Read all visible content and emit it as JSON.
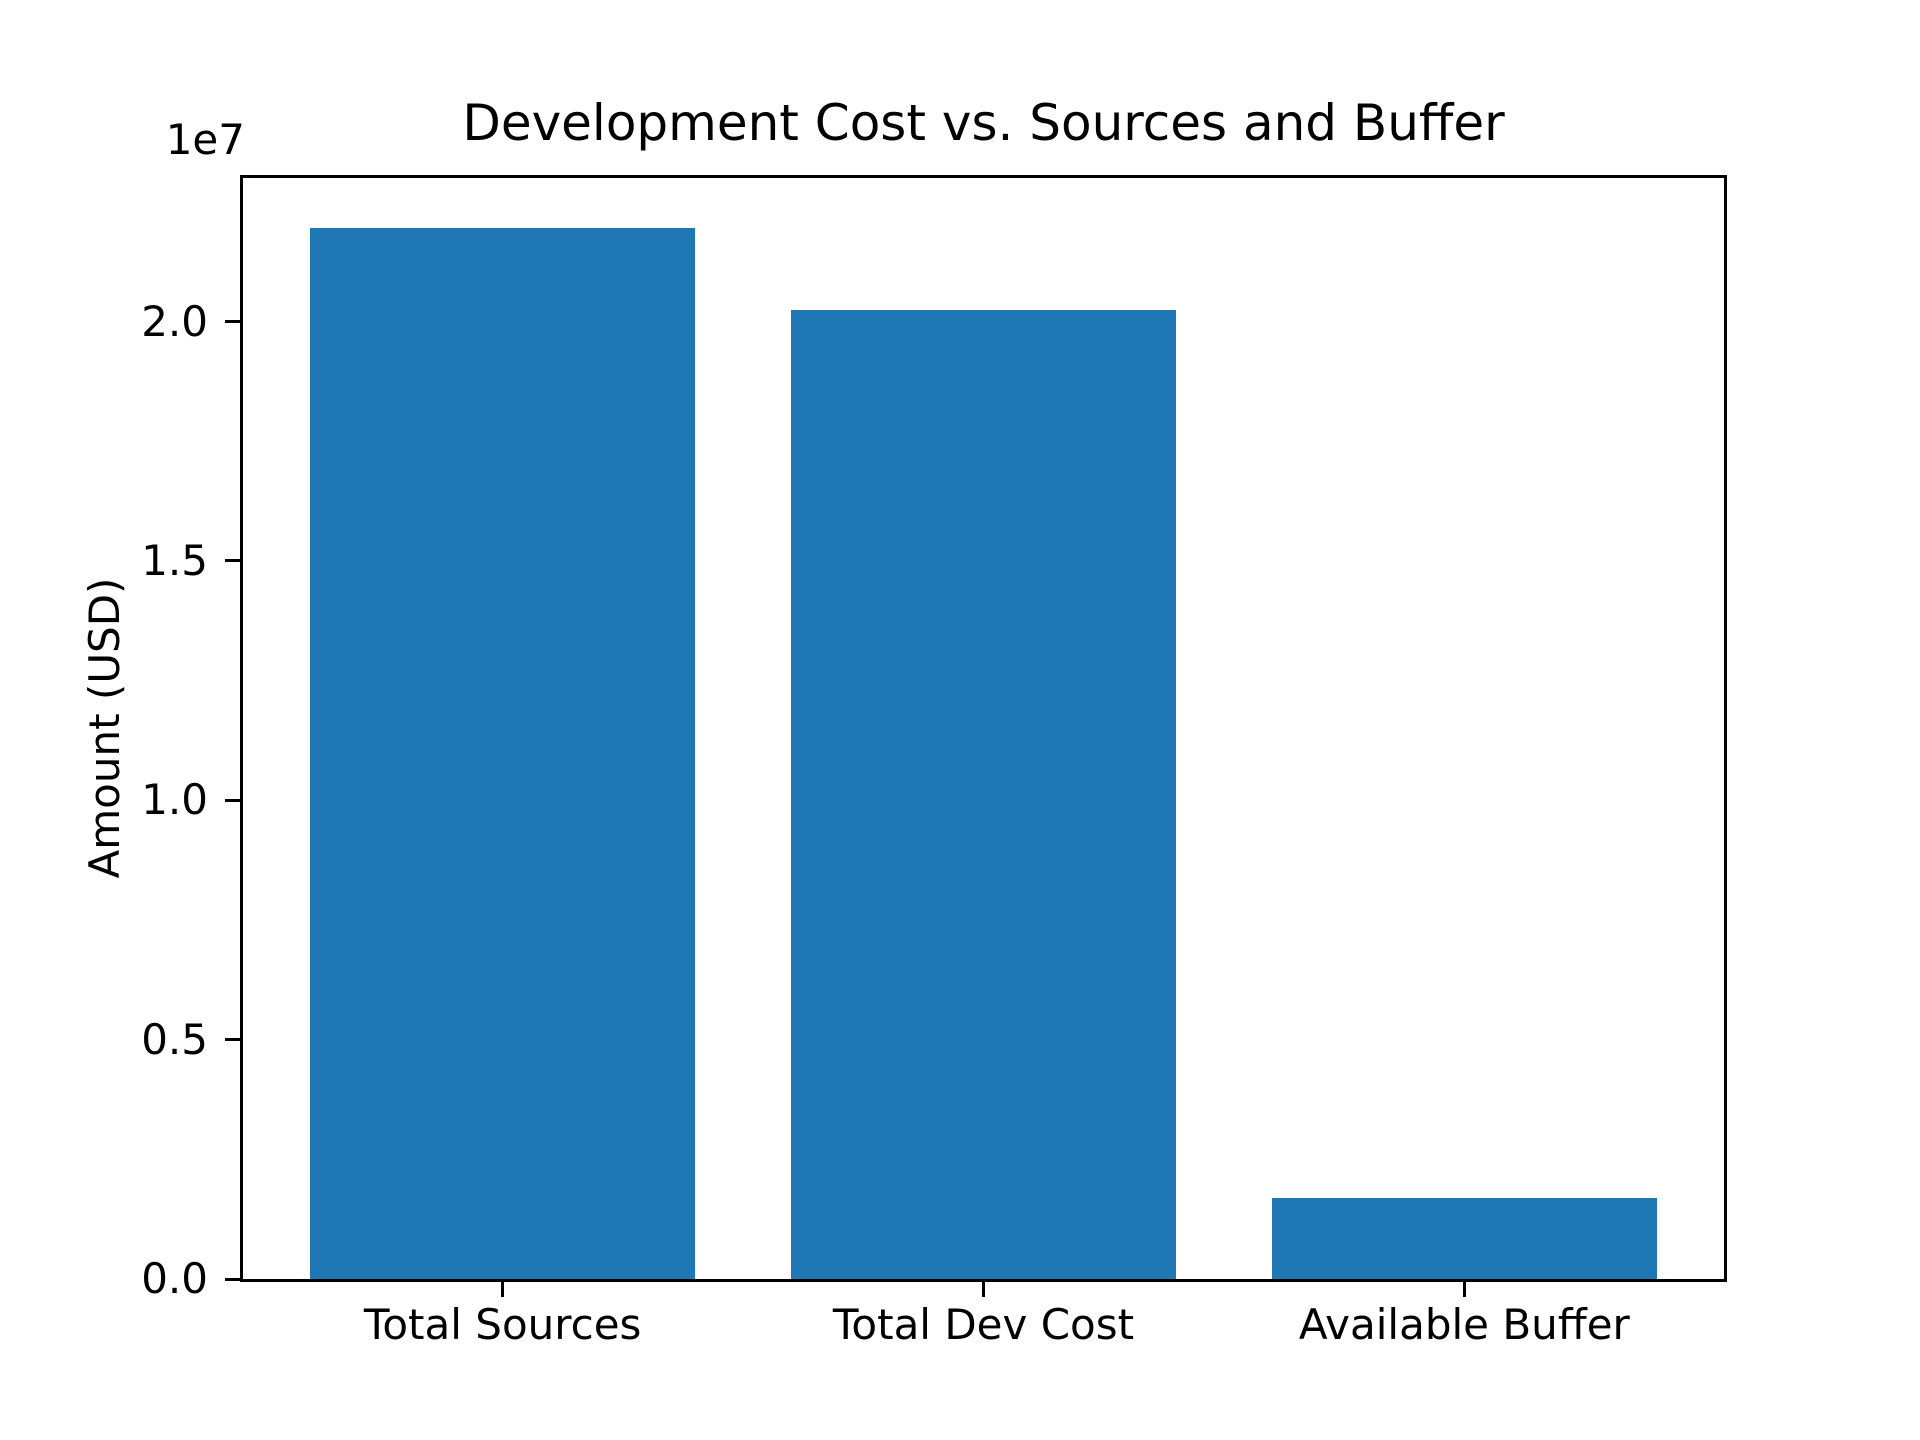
{
  "chart_data": {
    "type": "bar",
    "title": "Development Cost vs. Sources and Buffer",
    "xlabel": "",
    "ylabel": "Amount (USD)",
    "y_offset_label": "1e7",
    "categories": [
      "Total Sources",
      "Total Dev Cost",
      "Available Buffer"
    ],
    "values": [
      21950000,
      20250000,
      1700000
    ],
    "bar_color": "#1f77b4",
    "ylim": [
      0,
      23000000
    ],
    "yticks": [
      0,
      5000000,
      10000000,
      15000000,
      20000000
    ],
    "ytick_labels": [
      "0.0",
      "0.5",
      "1.0",
      "1.5",
      "2.0"
    ],
    "bar_rel_width": 0.8,
    "grid": false,
    "legend": null,
    "background_color": "#ffffff",
    "text_color": "#000000"
  }
}
